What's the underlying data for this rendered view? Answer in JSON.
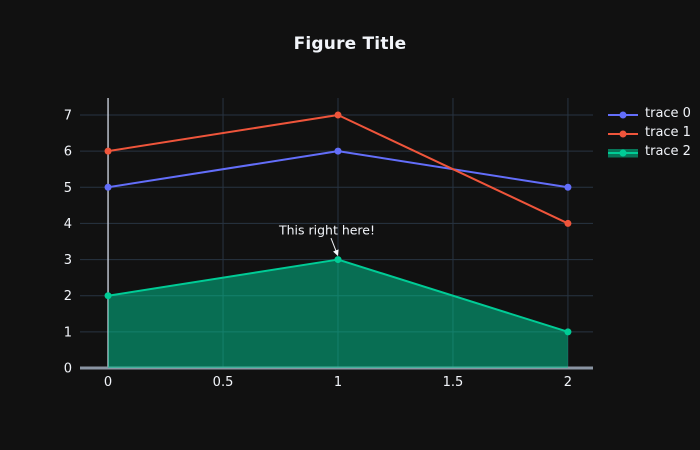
{
  "figure": {
    "title": "Figure Title",
    "background_color": "#111111",
    "text_color": "#f2f5fa"
  },
  "chart_data": {
    "type": "line",
    "title": "Figure Title",
    "xlabel": "",
    "ylabel": "",
    "x": [
      0,
      1,
      2
    ],
    "series": [
      {
        "name": "trace 0",
        "color": "#636EFA",
        "values": [
          5,
          6,
          5
        ],
        "fill": false
      },
      {
        "name": "trace 1",
        "color": "#EF553B",
        "values": [
          6,
          7,
          4
        ],
        "fill": false
      },
      {
        "name": "trace 2",
        "color": "#00CC96",
        "values": [
          2,
          3,
          1
        ],
        "fill": true
      }
    ],
    "x_ticks": [
      0,
      0.5,
      1,
      1.5,
      2
    ],
    "x_tick_labels": [
      "0",
      "0.5",
      "1",
      "1.5",
      "2"
    ],
    "y_ticks": [
      0,
      1,
      2,
      3,
      4,
      5,
      6,
      7
    ],
    "y_tick_labels": [
      "0",
      "1",
      "2",
      "3",
      "4",
      "5",
      "6",
      "7"
    ],
    "xlim": [
      -0.122,
      2.109
    ],
    "ylim": [
      0,
      7.47
    ],
    "grid": true,
    "grid_color": "#283442",
    "zeroline_color": "#c6ccd8",
    "axis_line_color": "#8a95a3",
    "tick_color": "#f2f5fa",
    "fill_opacity": 0.5,
    "line_width": 2,
    "marker_size": 7,
    "legend_position": "top-right",
    "annotation": {
      "text": "This right here!",
      "x": 1,
      "y": 3,
      "color": "#f2f5fa"
    }
  }
}
